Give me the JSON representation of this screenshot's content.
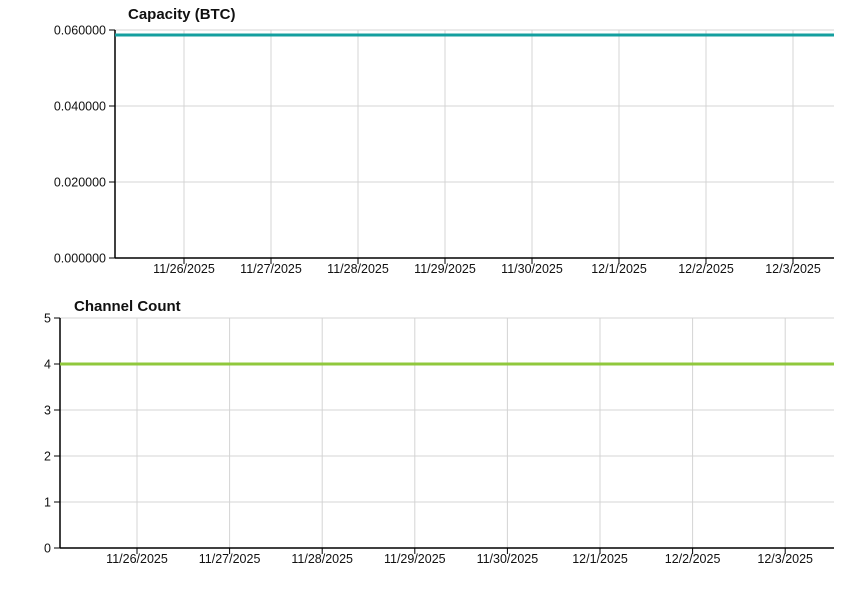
{
  "page": {
    "background": "#ffffff",
    "grid_color": "#d4d4d4",
    "axis_color": "#000000",
    "label_color": "#111111"
  },
  "chart_data": [
    {
      "type": "line",
      "title": "Capacity (BTC)",
      "categories": [
        "11/26/2025",
        "11/27/2025",
        "11/28/2025",
        "11/29/2025",
        "11/30/2025",
        "12/1/2025",
        "12/2/2025",
        "12/3/2025"
      ],
      "series": [
        {
          "name": "capacity-line",
          "color": "#149f9f",
          "values": [
            0.0587,
            0.0587,
            0.0587,
            0.0587,
            0.0587,
            0.0587,
            0.0587,
            0.0587
          ]
        }
      ],
      "ylim": [
        0,
        0.06
      ],
      "yticks": [
        {
          "value": 0.0,
          "label": "0.000000"
        },
        {
          "value": 0.02,
          "label": "0.020000"
        },
        {
          "value": 0.04,
          "label": "0.040000"
        },
        {
          "value": 0.06,
          "label": "0.060000"
        }
      ],
      "xlabel": "",
      "ylabel": "",
      "grid": true,
      "legend": "none"
    },
    {
      "type": "line",
      "title": "Channel Count",
      "categories": [
        "11/26/2025",
        "11/27/2025",
        "11/28/2025",
        "11/29/2025",
        "11/30/2025",
        "12/1/2025",
        "12/2/2025",
        "12/3/2025"
      ],
      "series": [
        {
          "name": "channel-count-line",
          "color": "#90c83c",
          "values": [
            4,
            4,
            4,
            4,
            4,
            4,
            4,
            4
          ]
        }
      ],
      "ylim": [
        0,
        5
      ],
      "yticks": [
        {
          "value": 0,
          "label": "0"
        },
        {
          "value": 1,
          "label": "1"
        },
        {
          "value": 2,
          "label": "2"
        },
        {
          "value": 3,
          "label": "3"
        },
        {
          "value": 4,
          "label": "4"
        },
        {
          "value": 5,
          "label": "5"
        }
      ],
      "xlabel": "",
      "ylabel": "",
      "grid": true,
      "legend": "none"
    }
  ]
}
